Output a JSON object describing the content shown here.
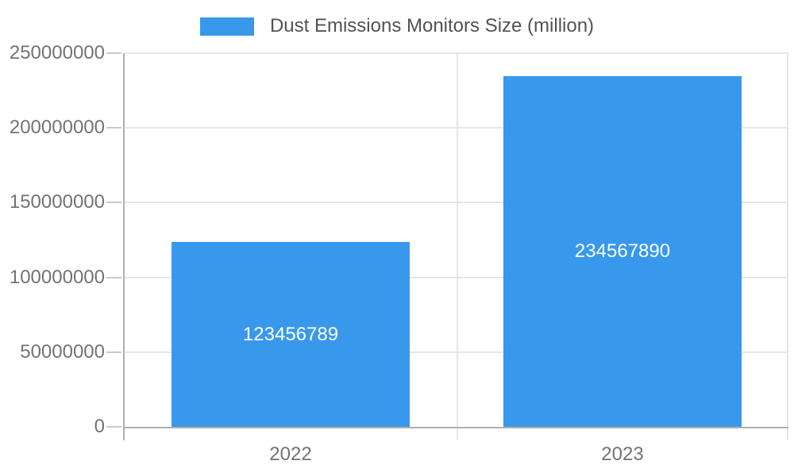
{
  "legend": {
    "label": "Dust Emissions Monitors Size (million)"
  },
  "chart_data": {
    "type": "bar",
    "title": "Dust Emissions Monitors Size (million)",
    "legend_position": "top",
    "grid": true,
    "categories": [
      "2022",
      "2023"
    ],
    "series": [
      {
        "name": "Dust Emissions Monitors Size (million)",
        "values": [
          123456789,
          234567890
        ]
      }
    ],
    "bar_value_labels": [
      "123456789",
      "234567890"
    ],
    "ylim": [
      0,
      250000000
    ],
    "yticks": [
      0,
      50000000,
      100000000,
      150000000,
      200000000,
      250000000
    ],
    "ytick_labels": [
      "0",
      "50000000",
      "100000000",
      "150000000",
      "200000000",
      "250000000"
    ],
    "colors": {
      "bar": "#3899ec",
      "grid": "#e6e6e6",
      "axis": "#b0b0b0",
      "tick_mark": "#c9c9c9",
      "axis_label_text": "#737373",
      "legend_text": "#525252",
      "bar_label_text": "#ffffff",
      "background": "#ffffff"
    }
  }
}
